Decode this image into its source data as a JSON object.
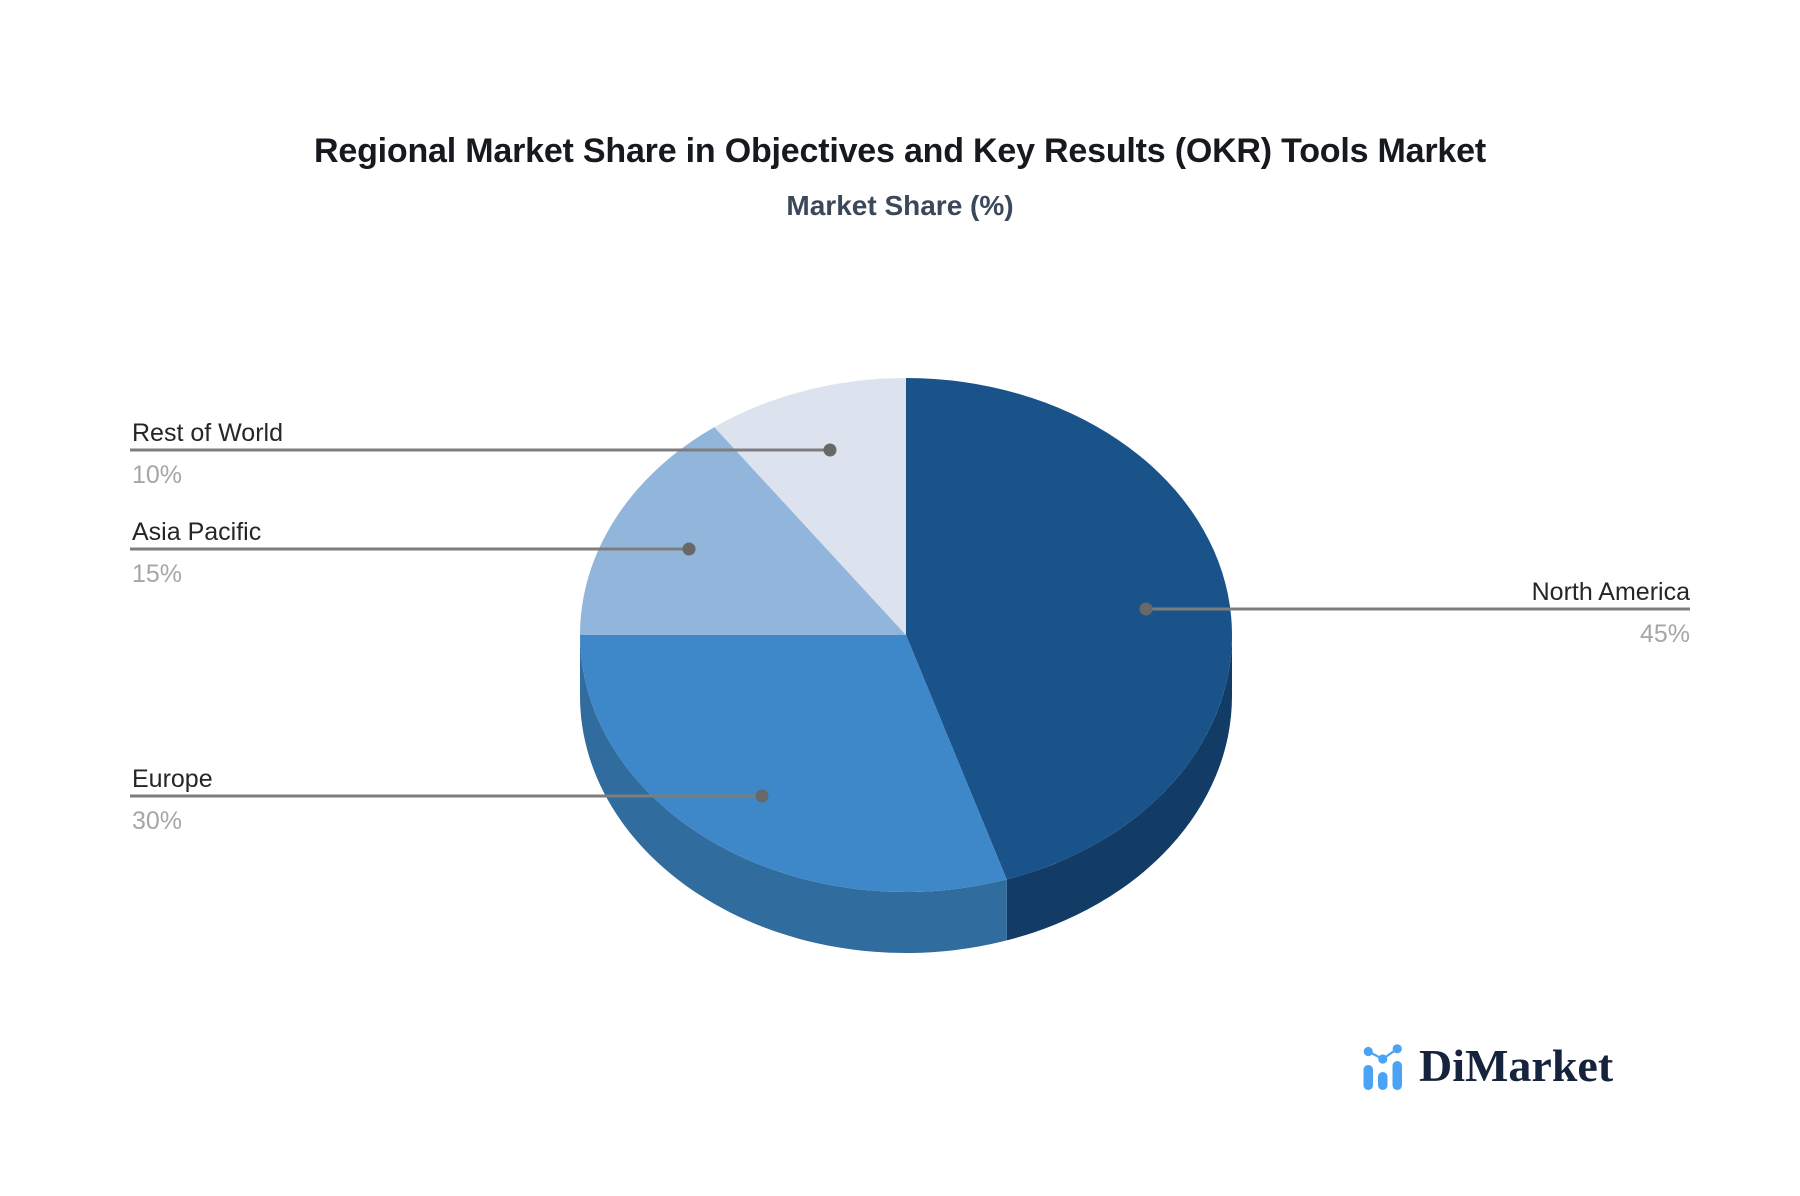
{
  "header": {
    "title": "Regional Market Share in Objectives and Key Results (OKR) Tools Market",
    "subtitle": "Market Share (%)"
  },
  "chart_data": {
    "type": "pie",
    "title": "Regional Market Share in Objectives and Key Results (OKR) Tools Market",
    "subtitle": "Market Share (%)",
    "unit": "%",
    "style": "3d-depth-pie",
    "start_angle_deg": 0,
    "direction": "clockwise",
    "legend_position": "callout-labels",
    "slices": [
      {
        "name": "North America",
        "value": 45,
        "pct_label": "45%",
        "color": "#19538a",
        "side_color": "#123c66",
        "label_side": "right"
      },
      {
        "name": "Europe",
        "value": 30,
        "pct_label": "30%",
        "color": "#3e87c9",
        "side_color": "#316c9e",
        "label_side": "left"
      },
      {
        "name": "Asia Pacific",
        "value": 15,
        "pct_label": "15%",
        "color": "#92b5dc",
        "side_color": "#7496bf",
        "label_side": "left"
      },
      {
        "name": "Rest of World",
        "value": 10,
        "pct_label": "10%",
        "color": "#dde3ee",
        "side_color": "#b6bfd1",
        "label_side": "left"
      }
    ],
    "callout_line_color": "#7d7d7d",
    "label_text_color": "#262626",
    "pct_text_color": "#a6a6a6"
  },
  "branding": {
    "logo_text": "DiMarket",
    "logo_icon": "bar-chart-trend-icon",
    "logo_icon_color": "#4aa3f5",
    "logo_text_color": "#16233c"
  }
}
